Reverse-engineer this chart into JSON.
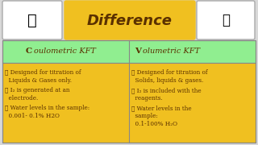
{
  "title": "Difference",
  "title_bg": "#F0C020",
  "title_color": "#8B4513",
  "header_bg": "#90EE90",
  "content_bg": "#F0C020",
  "border_color": "#888888",
  "col1_header": "Coulometric KFT",
  "col2_header": "Volumetric KFT",
  "col1_bold": "C",
  "col2_bold": "V",
  "col1_points": [
    "➤ Designed for titration of\n  Liquids & Gases only.",
    "➤ I₂ is generated at an\n  electrode.",
    "➤ Water levels in the sample:\n  0.001- 0.1% H2O"
  ],
  "col2_points": [
    "➤ Designed for titration of\n  Solids, liquids & gases.",
    "➤ I₂ is included with the\n  reagents.",
    "➤ Water levels in the\n  sample:\n  0.1-100% H₂O"
  ],
  "text_color": "#5A3000",
  "bg_color": "#D8D8D8",
  "fig_width": 3.2,
  "fig_height": 1.8,
  "dpi": 100
}
